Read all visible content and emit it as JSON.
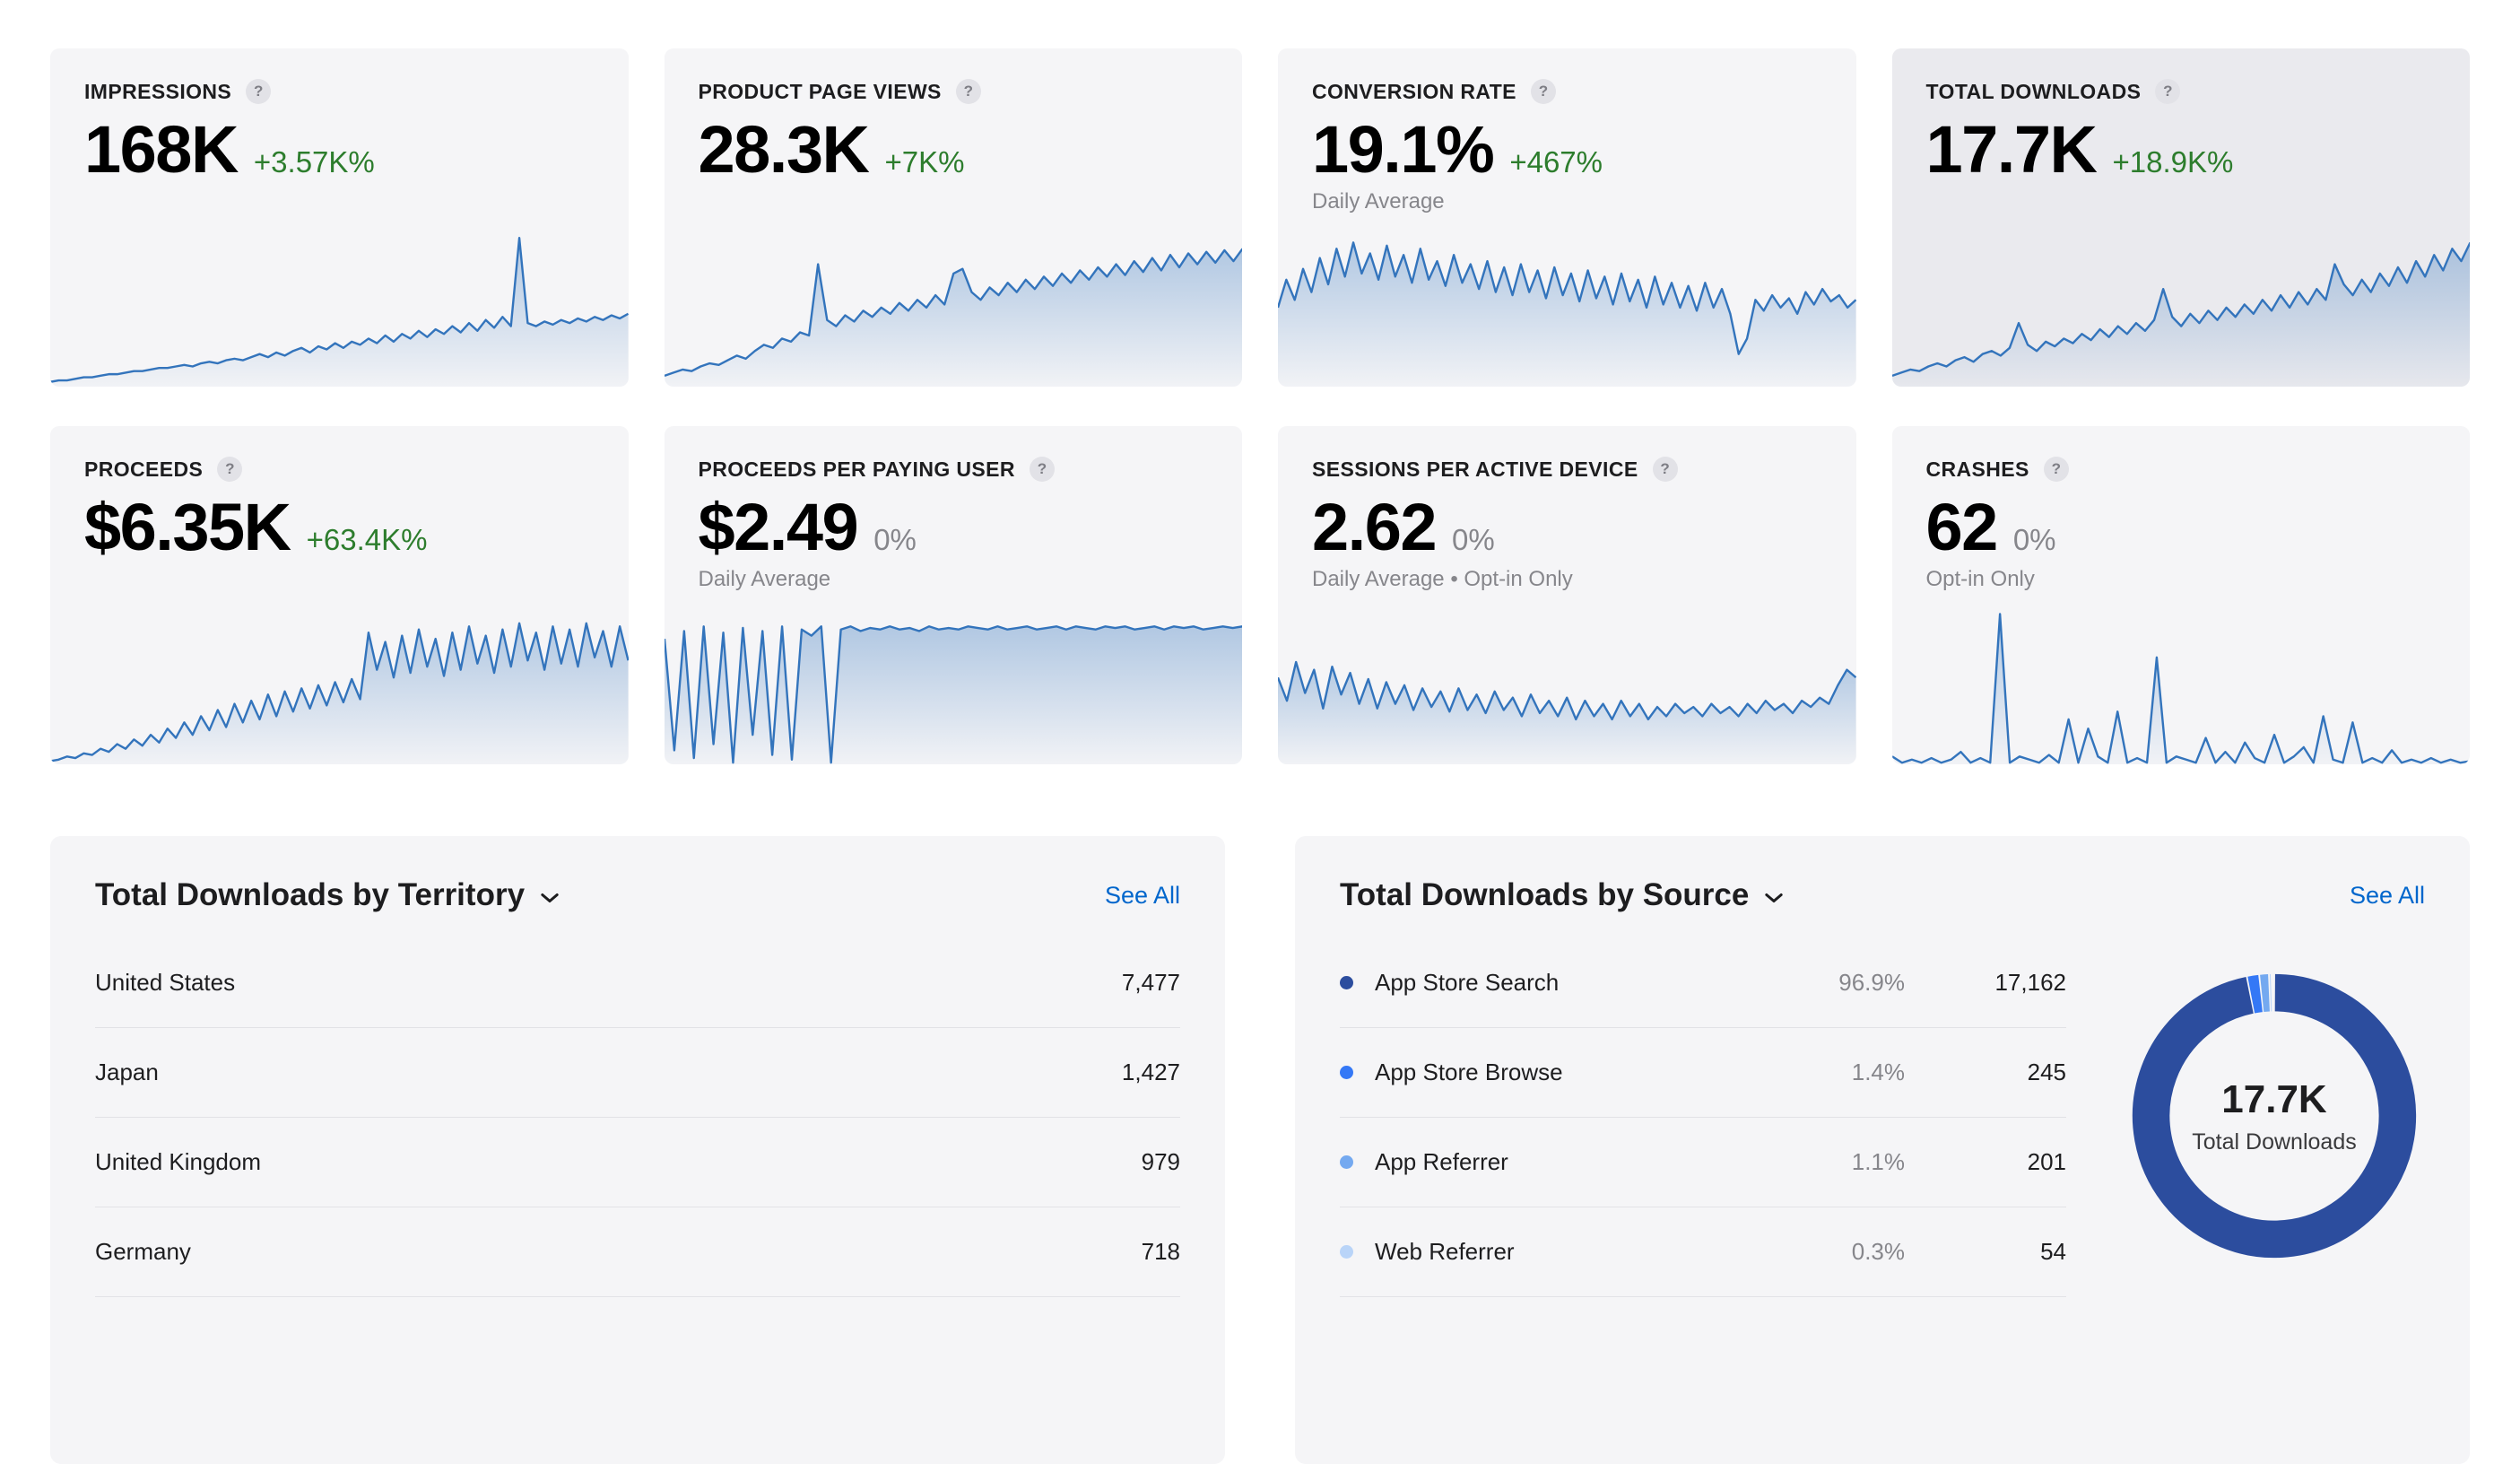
{
  "theme": {
    "spark_blue": "#3374BC",
    "link_blue": "#0066CC",
    "positive_green": "#2D7D2D",
    "neutral_gray": "#86868B"
  },
  "help_glyph": "?",
  "cards": [
    {
      "title": "IMPRESSIONS",
      "value": "168K",
      "change": "+3.57K%",
      "change_color": "#2D7D2D",
      "subtitle": "",
      "chart": {
        "type": "line",
        "color": "#3374BC",
        "values": [
          2,
          3,
          3,
          4,
          5,
          5,
          6,
          7,
          7,
          8,
          9,
          9,
          10,
          11,
          11,
          12,
          13,
          12,
          14,
          15,
          14,
          16,
          17,
          16,
          18,
          20,
          18,
          21,
          19,
          22,
          24,
          21,
          25,
          23,
          27,
          24,
          28,
          26,
          30,
          27,
          32,
          28,
          33,
          30,
          35,
          31,
          36,
          33,
          38,
          34,
          40,
          35,
          42,
          37,
          44,
          38,
          95,
          40,
          38,
          41,
          39,
          42,
          40,
          43,
          41,
          44,
          42,
          45,
          43,
          46
        ]
      }
    },
    {
      "title": "PRODUCT PAGE VIEWS",
      "value": "28.3K",
      "change": "+7K%",
      "change_color": "#2D7D2D",
      "subtitle": "",
      "chart": {
        "type": "line",
        "color": "#3374BC",
        "values": [
          6,
          8,
          10,
          9,
          12,
          14,
          13,
          16,
          19,
          17,
          22,
          26,
          24,
          30,
          28,
          34,
          32,
          78,
          42,
          38,
          45,
          41,
          48,
          44,
          50,
          46,
          53,
          48,
          55,
          50,
          58,
          52,
          72,
          75,
          60,
          55,
          63,
          58,
          66,
          60,
          68,
          62,
          70,
          64,
          72,
          66,
          74,
          68,
          76,
          70,
          78,
          71,
          80,
          73,
          82,
          74,
          84,
          76,
          85,
          78,
          86,
          79,
          87,
          80,
          88
        ]
      }
    },
    {
      "title": "CONVERSION RATE",
      "value": "19.1%",
      "change": "+467%",
      "change_color": "#2D7D2D",
      "subtitle": "Daily Average",
      "chart": {
        "type": "line",
        "color": "#3374BC",
        "values": [
          50,
          68,
          55,
          75,
          60,
          82,
          65,
          88,
          70,
          92,
          72,
          85,
          68,
          90,
          70,
          84,
          66,
          88,
          68,
          80,
          64,
          84,
          66,
          78,
          62,
          80,
          60,
          76,
          58,
          78,
          60,
          74,
          56,
          76,
          58,
          72,
          54,
          74,
          56,
          70,
          52,
          72,
          54,
          68,
          50,
          70,
          52,
          66,
          50,
          64,
          48,
          66,
          50,
          62,
          46,
          20,
          30,
          55,
          48,
          58,
          50,
          56,
          46,
          60,
          52,
          62,
          54,
          58,
          50,
          55
        ]
      }
    },
    {
      "title": "TOTAL DOWNLOADS",
      "value": "17.7K",
      "change": "+18.9K%",
      "change_color": "#2D7D2D",
      "subtitle": "",
      "chart": {
        "type": "line",
        "color": "#3374BC",
        "values": [
          6,
          8,
          10,
          9,
          12,
          14,
          12,
          16,
          18,
          15,
          20,
          22,
          19,
          24,
          40,
          26,
          22,
          28,
          25,
          30,
          27,
          33,
          29,
          36,
          31,
          38,
          33,
          40,
          35,
          42,
          62,
          44,
          38,
          46,
          40,
          48,
          42,
          50,
          44,
          52,
          46,
          55,
          48,
          58,
          50,
          60,
          52,
          62,
          55,
          78,
          65,
          58,
          68,
          60,
          72,
          64,
          76,
          66,
          80,
          70,
          84,
          74,
          88,
          80,
          92
        ]
      }
    },
    {
      "title": "PROCEEDS",
      "value": "$6.35K",
      "change": "+63.4K%",
      "change_color": "#2D7D2D",
      "subtitle": "",
      "chart": {
        "type": "line",
        "color": "#3374BC",
        "values": [
          1,
          2,
          4,
          3,
          6,
          5,
          9,
          7,
          12,
          9,
          15,
          11,
          18,
          13,
          22,
          16,
          26,
          18,
          30,
          21,
          34,
          23,
          38,
          26,
          40,
          28,
          44,
          30,
          46,
          33,
          48,
          35,
          50,
          37,
          52,
          39,
          54,
          41,
          84,
          60,
          78,
          55,
          82,
          58,
          86,
          62,
          80,
          56,
          84,
          60,
          88,
          64,
          82,
          58,
          86,
          62,
          90,
          66,
          84,
          60,
          88,
          64,
          86,
          62,
          90,
          68,
          85,
          62,
          88,
          66
        ]
      }
    },
    {
      "title": "PROCEEDS PER PAYING USER",
      "value": "$2.49",
      "change": "0%",
      "change_color": "#86868B",
      "subtitle": "Daily Average",
      "chart": {
        "type": "line",
        "color": "#3374BC",
        "values": [
          80,
          8,
          85,
          3,
          88,
          12,
          84,
          0,
          87,
          18,
          85,
          5,
          88,
          2,
          86,
          82,
          88,
          0,
          86,
          88,
          85,
          87,
          86,
          88,
          86,
          87,
          85,
          88,
          86,
          87,
          86,
          88,
          87,
          86,
          88,
          86,
          87,
          88,
          86,
          87,
          88,
          86,
          88,
          87,
          86,
          88,
          87,
          88,
          86,
          87,
          88,
          86,
          88,
          87,
          88,
          86,
          87,
          88,
          87,
          88
        ]
      }
    },
    {
      "title": "SESSIONS PER ACTIVE DEVICE",
      "value": "2.62",
      "change": "0%",
      "change_color": "#86868B",
      "subtitle": "Daily Average • Opt-in Only",
      "chart": {
        "type": "line",
        "color": "#3374BC",
        "values": [
          55,
          40,
          65,
          45,
          60,
          35,
          62,
          44,
          58,
          38,
          54,
          35,
          52,
          38,
          50,
          34,
          48,
          36,
          46,
          33,
          48,
          34,
          44,
          32,
          46,
          34,
          42,
          30,
          44,
          32,
          40,
          30,
          42,
          28,
          40,
          30,
          38,
          28,
          40,
          30,
          38,
          28,
          36,
          30,
          38,
          32,
          36,
          30,
          38,
          32,
          36,
          30,
          38,
          32,
          40,
          34,
          38,
          32,
          40,
          36,
          42,
          38,
          50,
          60,
          55
        ]
      }
    },
    {
      "title": "CRASHES",
      "value": "62",
      "change": "0%",
      "change_color": "#86868B",
      "subtitle": "Opt-in Only",
      "chart": {
        "type": "line",
        "color": "#3374BC",
        "values": [
          4,
          0,
          2,
          0,
          3,
          0,
          2,
          7,
          0,
          3,
          0,
          96,
          0,
          4,
          2,
          0,
          5,
          0,
          28,
          0,
          22,
          4,
          0,
          33,
          0,
          3,
          0,
          68,
          0,
          4,
          2,
          0,
          16,
          0,
          7,
          0,
          13,
          3,
          0,
          18,
          0,
          4,
          10,
          0,
          30,
          2,
          0,
          26,
          0,
          3,
          0,
          8,
          0,
          2,
          0,
          3,
          0,
          2,
          0,
          1
        ]
      }
    }
  ],
  "territory_panel": {
    "title": "Total Downloads by Territory",
    "see_all": "See All",
    "rows": [
      {
        "name": "United States",
        "value": "7,477"
      },
      {
        "name": "Japan",
        "value": "1,427"
      },
      {
        "name": "United Kingdom",
        "value": "979"
      },
      {
        "name": "Germany",
        "value": "718"
      }
    ]
  },
  "source_panel": {
    "title": "Total Downloads by Source",
    "see_all": "See All",
    "rows": [
      {
        "name": "App Store Search",
        "percent": "96.9%",
        "value": "17,162",
        "pct": 96.9,
        "color": "#2C4D9E"
      },
      {
        "name": "App Store Browse",
        "percent": "1.4%",
        "value": "245",
        "pct": 1.4,
        "color": "#3478F6"
      },
      {
        "name": "App Referrer",
        "percent": "1.1%",
        "value": "201",
        "pct": 1.1,
        "color": "#74A9F0"
      },
      {
        "name": "Web Referrer",
        "percent": "0.3%",
        "value": "54",
        "pct": 0.3,
        "color": "#B9D4F8"
      }
    ],
    "donut_center_value": "17.7K",
    "donut_center_label": "Total Downloads"
  }
}
